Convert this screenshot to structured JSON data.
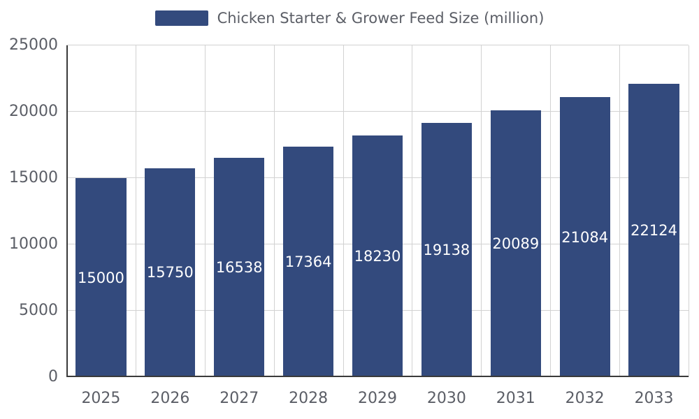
{
  "chart_data": {
    "type": "bar",
    "title": "Chicken Starter & Grower Feed Size (million)",
    "categories": [
      "2025",
      "2026",
      "2027",
      "2028",
      "2029",
      "2030",
      "2031",
      "2032",
      "2033"
    ],
    "values": [
      15000,
      15750,
      16538,
      17364,
      18230,
      19138,
      20089,
      21084,
      22124
    ],
    "xlabel": "",
    "ylabel": "",
    "ylim": [
      0,
      25000
    ],
    "yticks": [
      0,
      5000,
      10000,
      15000,
      20000,
      25000
    ],
    "grid": true,
    "legend_position": "top",
    "value_labels": "inside-center",
    "colors": {
      "bar": "#334a7d",
      "bar_label": "#ffffff",
      "axis_text": "#5b5e66",
      "grid_line": "#d2d2d2",
      "axis_line": "#3a3a3a",
      "background": "#ffffff"
    }
  }
}
